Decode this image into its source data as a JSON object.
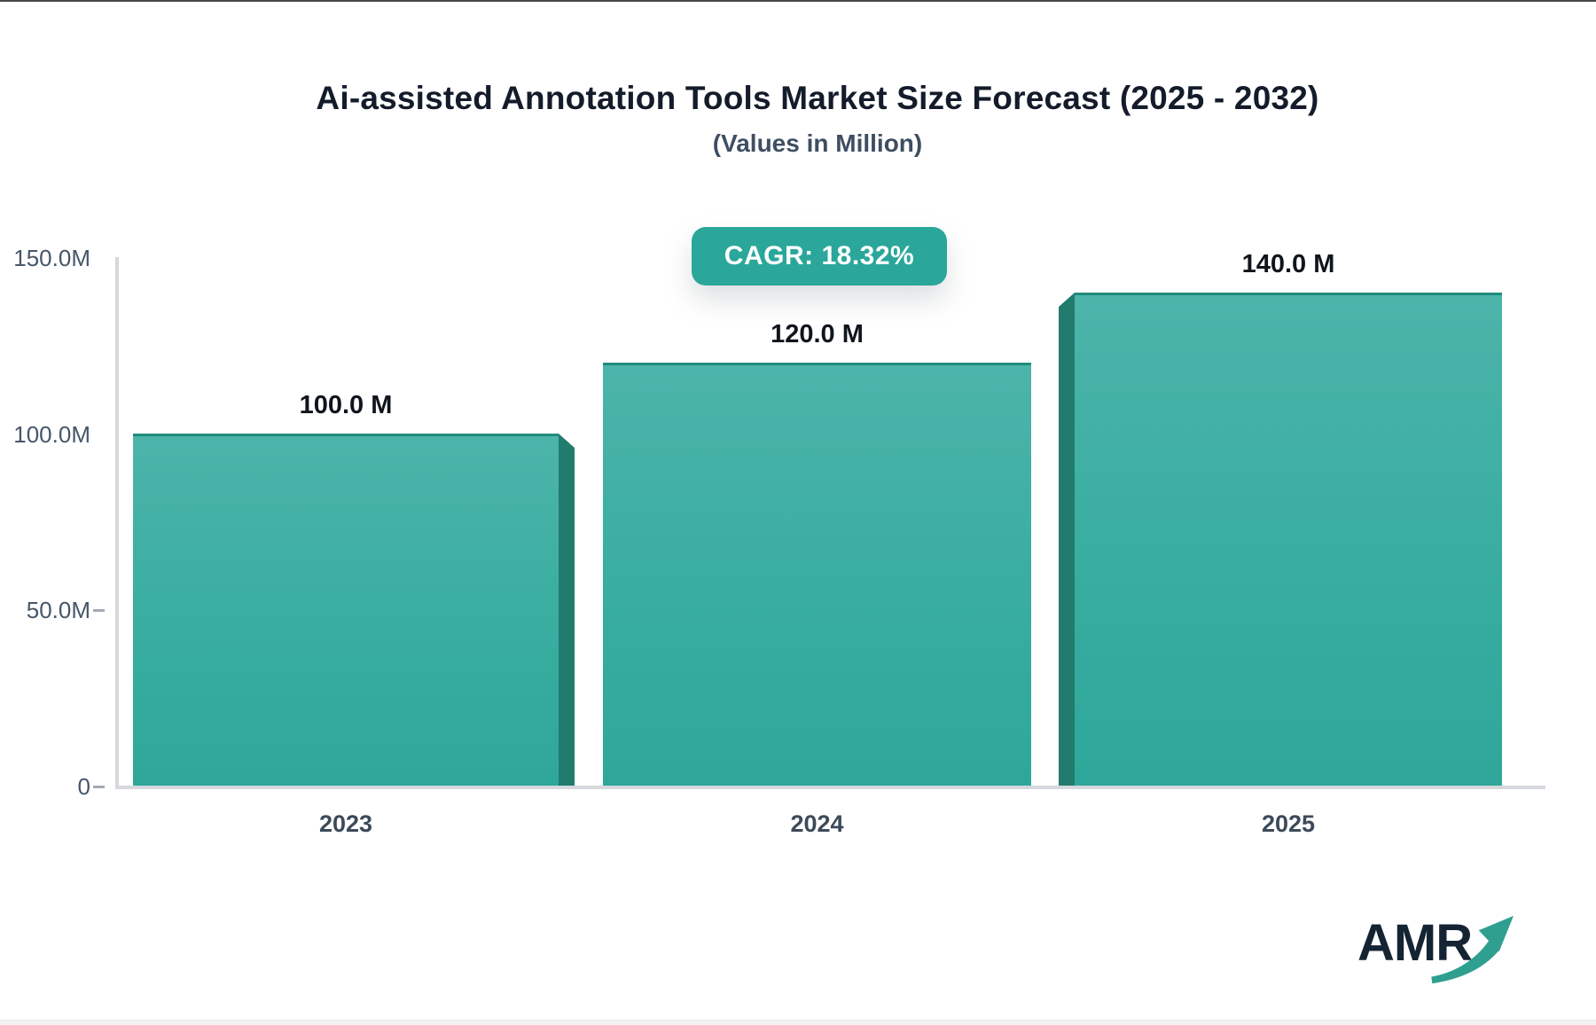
{
  "title": "Ai-assisted Annotation Tools Market Size Forecast (2025 - 2032)",
  "subtitle": "(Values in Million)",
  "badge": {
    "label": "CAGR: 18.32%"
  },
  "logo": {
    "text": "AMR",
    "arrow_icon": "growth-arrow-icon",
    "arrow_color": "#2f9f90",
    "text_color": "#152433"
  },
  "colors": {
    "bar_top": "#4db4aa",
    "bar_bottom": "#2ea79a",
    "bar_top_edge": "#1f8c7d",
    "bar_bevel": "#217c6e",
    "badge_bg": "#2aa79a",
    "axis_line": "#d5d8dd",
    "title_text": "#141c2b",
    "subtitle_text": "#3e4e63",
    "tick_text": "#47566a"
  },
  "chart_data": {
    "type": "bar",
    "title": "Ai-assisted Annotation Tools Market Size Forecast (2025 - 2032)",
    "subtitle": "(Values in Million)",
    "categories": [
      "2023",
      "2024",
      "2025"
    ],
    "values": [
      100.0,
      120.0,
      140.0
    ],
    "bar_labels": [
      "100.0 M",
      "120.0 M",
      "140.0 M"
    ],
    "unit": "Million",
    "xlabel": "",
    "ylabel": "",
    "ylim": [
      0,
      150
    ],
    "y_axis": [
      {
        "label": "150.0M",
        "value": 150,
        "tick": false
      },
      {
        "label": "100.0M",
        "value": 100,
        "tick": false
      },
      {
        "label": "50.0M",
        "value": 50,
        "tick": true
      },
      {
        "label": "0",
        "value": 0,
        "tick": true
      }
    ],
    "grid": false,
    "legend": false,
    "annotation": "CAGR: 18.32%"
  }
}
